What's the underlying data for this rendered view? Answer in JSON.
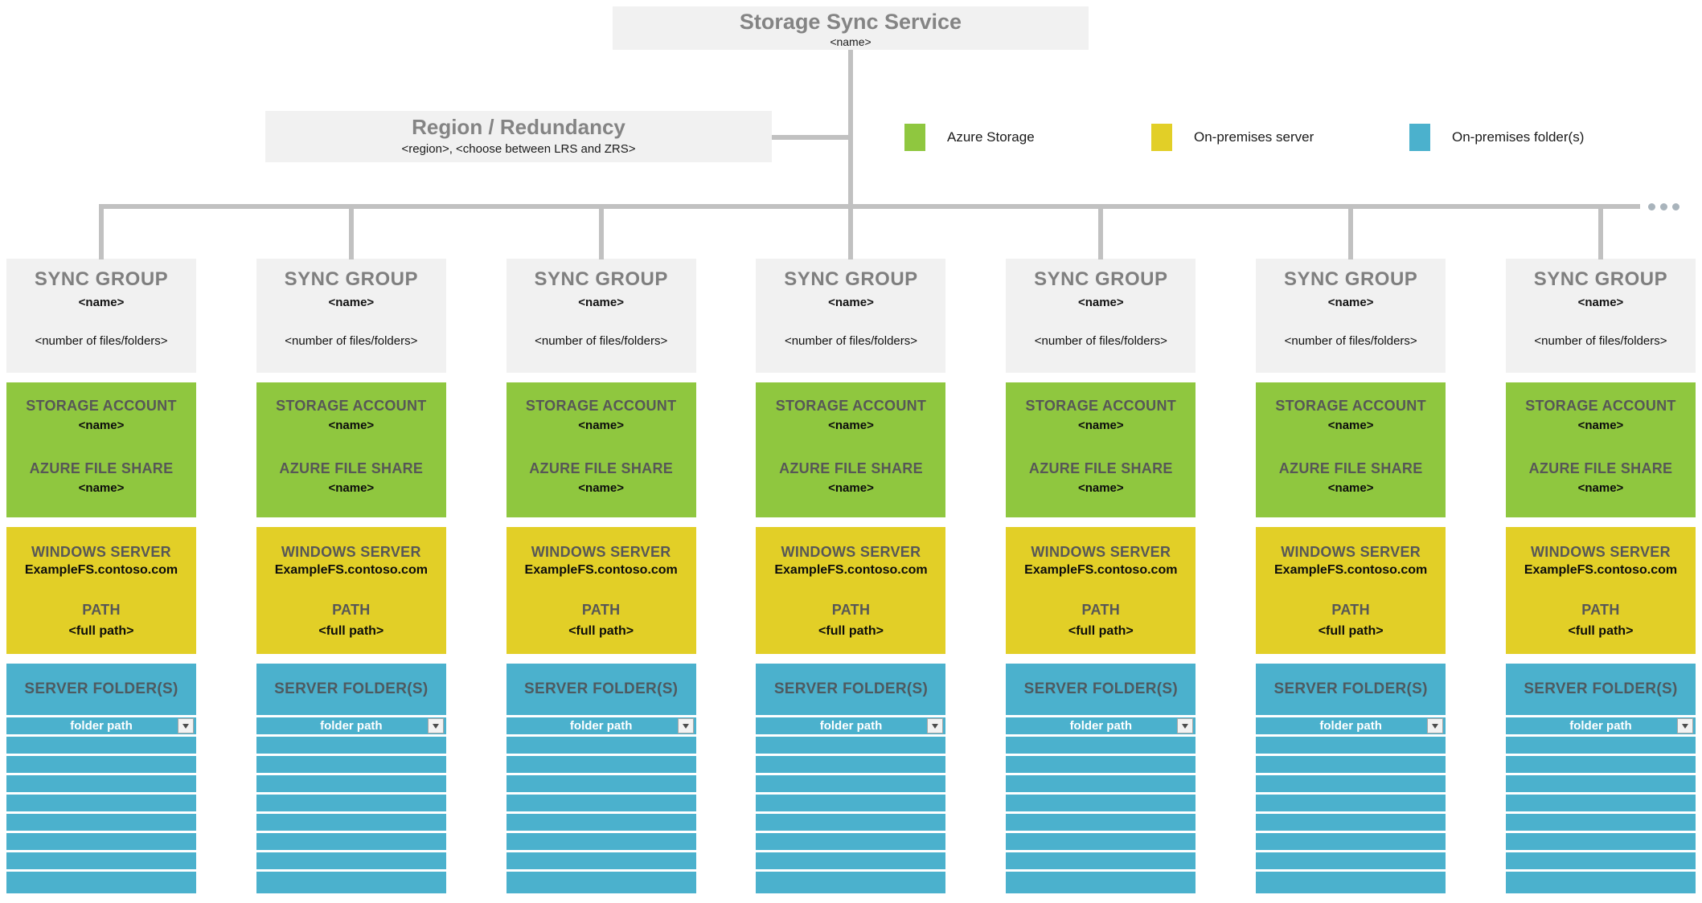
{
  "root": {
    "title": "Storage Sync Service",
    "subtitle": "<name>"
  },
  "region": {
    "title": "Region / Redundancy",
    "subtitle": "<region>, <choose between LRS and ZRS>"
  },
  "legend": {
    "items": [
      {
        "label": "Azure Storage",
        "color": "#8FC73F"
      },
      {
        "label": "On-premises server",
        "color": "#E2CF27"
      },
      {
        "label": "On-premises folder(s)",
        "color": "#4BB1CD"
      }
    ]
  },
  "icons": {
    "more_indicator": "ellipsis-dots",
    "folder_dropdown": "chevron-down"
  },
  "colors": {
    "connector": "#C1C1C1",
    "node_gray": "#F1F1F1",
    "azure_green": "#8FC73F",
    "server_yellow": "#E2CF27",
    "folder_blue": "#4BB1CD",
    "heading_gray": "#7F7F7F",
    "colored_box_heading": "#575757"
  },
  "sync_groups": [
    {
      "header": {
        "title": "SYNC GROUP",
        "name": "<name>",
        "count": "<number of files/folders>"
      },
      "storage": {
        "account_label": "STORAGE ACCOUNT",
        "account_name": "<name>",
        "share_label": "AZURE FILE SHARE",
        "share_name": "<name>"
      },
      "server": {
        "label": "WINDOWS SERVER",
        "hostname": "ExampleFS.contoso.com",
        "path_label": "PATH",
        "path_value": "<full path>"
      },
      "folders": {
        "label": "SERVER FOLDER(S)",
        "first_row": "folder path",
        "empty_rows": 8
      }
    },
    {
      "header": {
        "title": "SYNC GROUP",
        "name": "<name>",
        "count": "<number of files/folders>"
      },
      "storage": {
        "account_label": "STORAGE ACCOUNT",
        "account_name": "<name>",
        "share_label": "AZURE FILE SHARE",
        "share_name": "<name>"
      },
      "server": {
        "label": "WINDOWS SERVER",
        "hostname": "ExampleFS.contoso.com",
        "path_label": "PATH",
        "path_value": "<full path>"
      },
      "folders": {
        "label": "SERVER FOLDER(S)",
        "first_row": "folder path",
        "empty_rows": 8
      }
    },
    {
      "header": {
        "title": "SYNC GROUP",
        "name": "<name>",
        "count": "<number of files/folders>"
      },
      "storage": {
        "account_label": "STORAGE ACCOUNT",
        "account_name": "<name>",
        "share_label": "AZURE FILE SHARE",
        "share_name": "<name>"
      },
      "server": {
        "label": "WINDOWS SERVER",
        "hostname": "ExampleFS.contoso.com",
        "path_label": "PATH",
        "path_value": "<full path>"
      },
      "folders": {
        "label": "SERVER FOLDER(S)",
        "first_row": "folder path",
        "empty_rows": 8
      }
    },
    {
      "header": {
        "title": "SYNC GROUP",
        "name": "<name>",
        "count": "<number of files/folders>"
      },
      "storage": {
        "account_label": "STORAGE ACCOUNT",
        "account_name": "<name>",
        "share_label": "AZURE FILE SHARE",
        "share_name": "<name>"
      },
      "server": {
        "label": "WINDOWS SERVER",
        "hostname": "ExampleFS.contoso.com",
        "path_label": "PATH",
        "path_value": "<full path>"
      },
      "folders": {
        "label": "SERVER FOLDER(S)",
        "first_row": "folder path",
        "empty_rows": 8
      }
    },
    {
      "header": {
        "title": "SYNC GROUP",
        "name": "<name>",
        "count": "<number of files/folders>"
      },
      "storage": {
        "account_label": "STORAGE ACCOUNT",
        "account_name": "<name>",
        "share_label": "AZURE FILE SHARE",
        "share_name": "<name>"
      },
      "server": {
        "label": "WINDOWS SERVER",
        "hostname": "ExampleFS.contoso.com",
        "path_label": "PATH",
        "path_value": "<full path>"
      },
      "folders": {
        "label": "SERVER FOLDER(S)",
        "first_row": "folder path",
        "empty_rows": 8
      }
    },
    {
      "header": {
        "title": "SYNC GROUP",
        "name": "<name>",
        "count": "<number of files/folders>"
      },
      "storage": {
        "account_label": "STORAGE ACCOUNT",
        "account_name": "<name>",
        "share_label": "AZURE FILE SHARE",
        "share_name": "<name>"
      },
      "server": {
        "label": "WINDOWS SERVER",
        "hostname": "ExampleFS.contoso.com",
        "path_label": "PATH",
        "path_value": "<full path>"
      },
      "folders": {
        "label": "SERVER FOLDER(S)",
        "first_row": "folder path",
        "empty_rows": 8
      }
    },
    {
      "header": {
        "title": "SYNC GROUP",
        "name": "<name>",
        "count": "<number of files/folders>"
      },
      "storage": {
        "account_label": "STORAGE ACCOUNT",
        "account_name": "<name>",
        "share_label": "AZURE FILE SHARE",
        "share_name": "<name>"
      },
      "server": {
        "label": "WINDOWS SERVER",
        "hostname": "ExampleFS.contoso.com",
        "path_label": "PATH",
        "path_value": "<full path>"
      },
      "folders": {
        "label": "SERVER FOLDER(S)",
        "first_row": "folder path",
        "empty_rows": 8
      }
    }
  ]
}
